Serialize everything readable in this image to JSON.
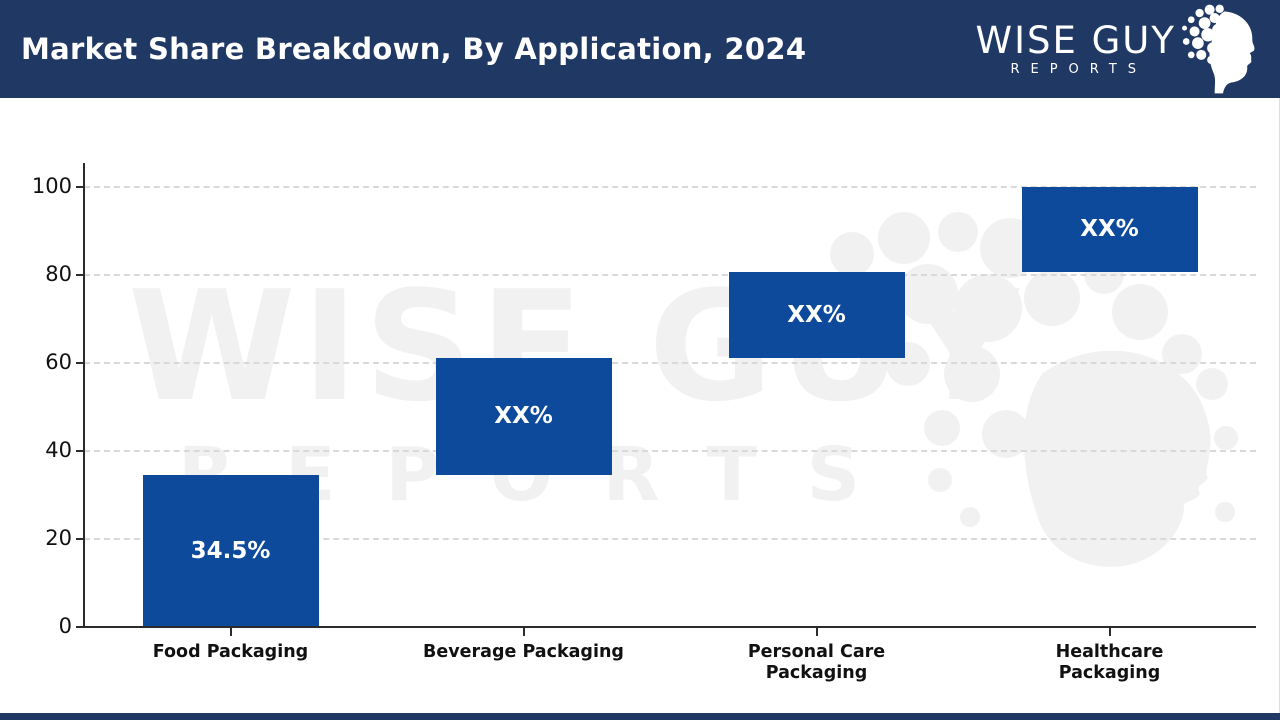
{
  "header": {
    "title": "Market Share Breakdown, By Application, 2024",
    "logo": {
      "line1": "WISE GUY",
      "line2": "REPORTS"
    }
  },
  "watermark": {
    "line1": "WISE GUY",
    "line2": "REPORTS"
  },
  "colors": {
    "header_bg": "#203864",
    "footer_bg": "#203864",
    "bar_color": "#0d4a9c",
    "bar_label_color": "#ffffff",
    "grid_color": "#d9d9d9",
    "axis_color": "#2b2b2b",
    "watermark_color": "#f1f1f1"
  },
  "chart_data": {
    "type": "bar",
    "subtype": "waterfall",
    "title": "Market Share Breakdown, By Application, 2024",
    "categories": [
      "Food Packaging",
      "Beverage Packaging",
      "Personal Care\nPackaging",
      "Healthcare\nPackaging"
    ],
    "segments": [
      {
        "category": "Food Packaging",
        "start": 0,
        "end": 34.5,
        "value": 34.5,
        "label": "34.5%"
      },
      {
        "category": "Beverage Packaging",
        "start": 34.5,
        "end": 61,
        "value": 26.5,
        "label": "XX%"
      },
      {
        "category": "Personal Care Packaging",
        "start": 61,
        "end": 80.5,
        "value": 19.5,
        "label": "XX%"
      },
      {
        "category": "Healthcare Packaging",
        "start": 80.5,
        "end": 100,
        "value": 19.5,
        "label": "XX%"
      }
    ],
    "ylim": [
      0,
      100
    ],
    "yticks": [
      0,
      20,
      40,
      60,
      80,
      100
    ],
    "grid": "horizontal-dashed",
    "legend": "none",
    "bar_color": "#0d4a9c",
    "bar_label_color": "#ffffff"
  }
}
